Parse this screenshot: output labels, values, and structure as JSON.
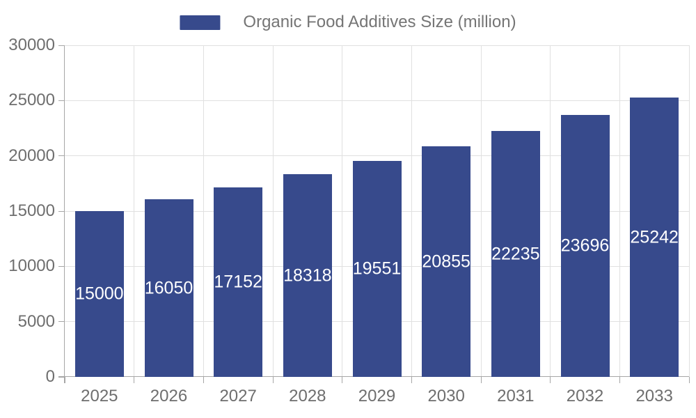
{
  "chart_data": {
    "type": "bar",
    "title": "Organic Food Additives Size (million)",
    "legend": {
      "label": "Organic Food Additives Size (million)",
      "position": "top"
    },
    "categories": [
      "2025",
      "2026",
      "2027",
      "2028",
      "2029",
      "2030",
      "2031",
      "2032",
      "2033"
    ],
    "series": [
      {
        "name": "Organic Food Additives Size (million)",
        "values": [
          15000,
          16050,
          17152,
          18318,
          19551,
          20855,
          22235,
          23696,
          25242
        ]
      }
    ],
    "xlabel": "",
    "ylabel": "",
    "ylim": [
      0,
      30000
    ],
    "yticks": [
      0,
      5000,
      10000,
      15000,
      20000,
      25000,
      30000
    ],
    "grid": true,
    "bar_value_labels_visible": true,
    "colors": {
      "bar": "#374A8C",
      "bar_label": "#FFFFFF",
      "grid_line": "#E0E0E0",
      "axis_line": "#A6A6A6",
      "tick_text": "#6E6E6E",
      "legend_text": "#757575",
      "background": "#FFFFFF"
    }
  }
}
